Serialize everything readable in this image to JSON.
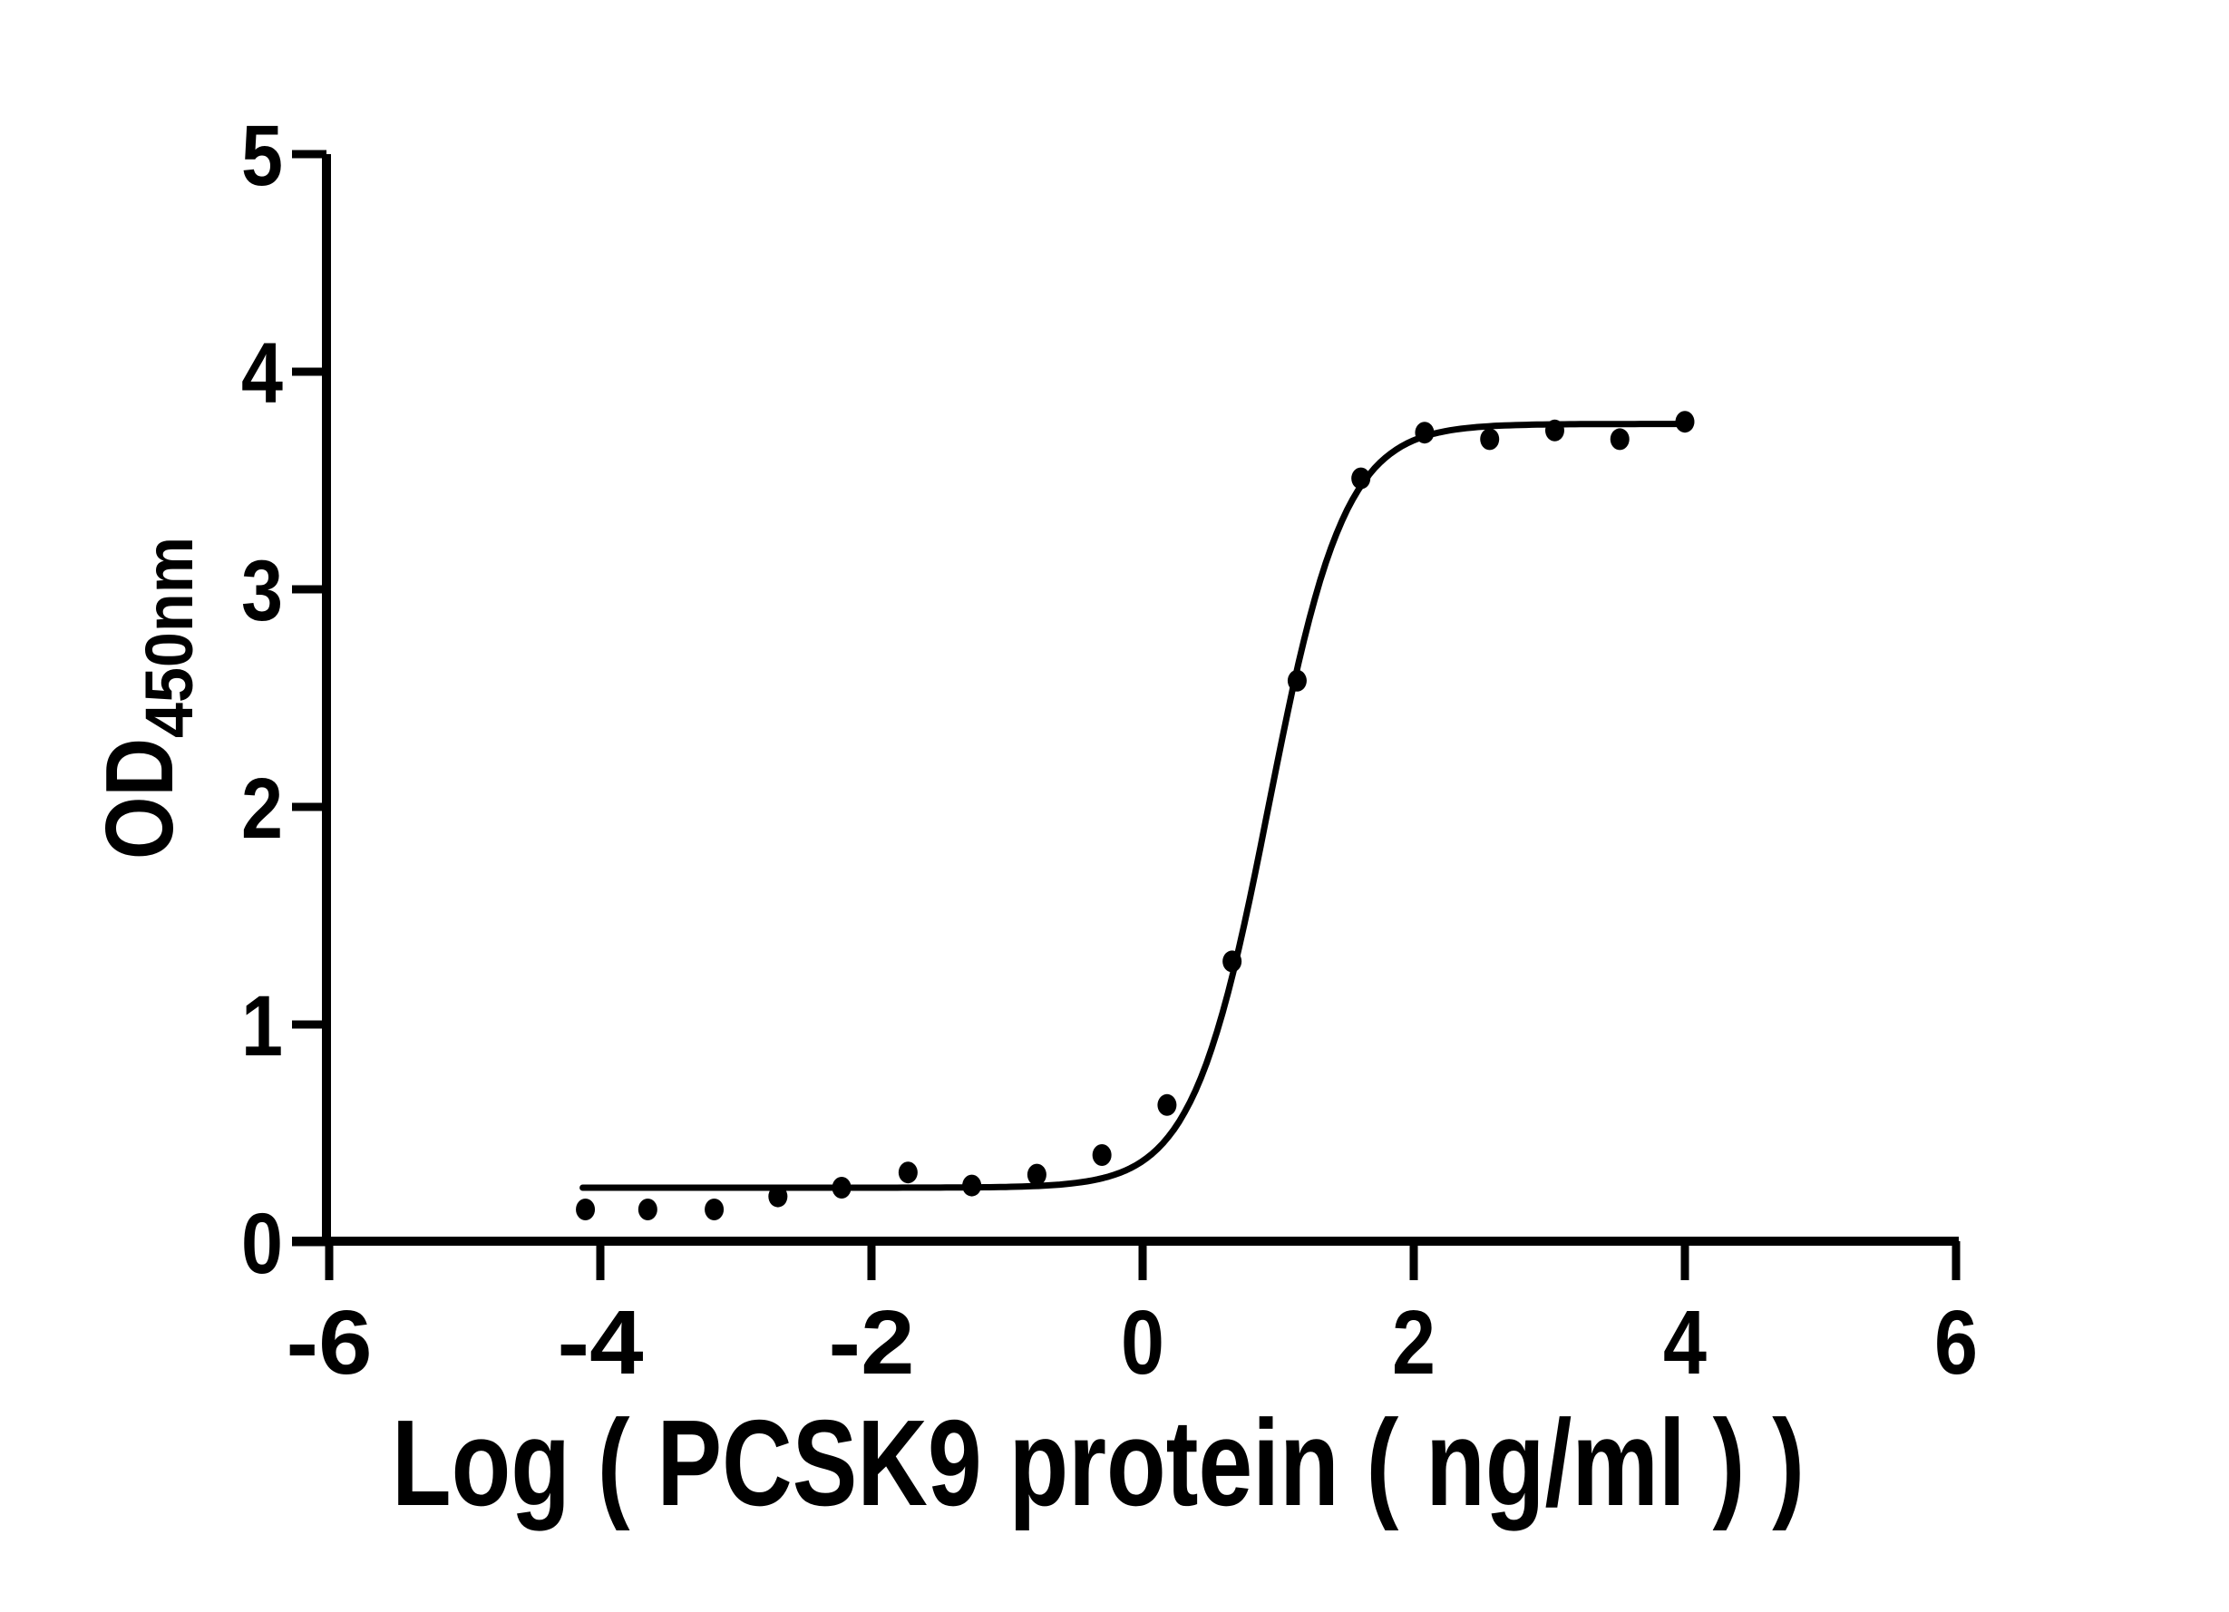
{
  "figure": {
    "background_color": "#ffffff",
    "ink_color": "#000000"
  },
  "chart_data": {
    "type": "scatter",
    "title": "",
    "xlabel": "Log ( PCSK9 protein ( ng/ml )   )",
    "ylabel": "OD",
    "ylabel_subscript": "450nm",
    "xlim": [
      -6,
      6
    ],
    "ylim": [
      0,
      5
    ],
    "x_ticks": [
      -6,
      -4,
      -2,
      0,
      2,
      4,
      6
    ],
    "y_ticks": [
      0,
      1,
      2,
      3,
      4,
      5
    ],
    "grid": false,
    "legend": "none",
    "marker": "filled-circle",
    "points": [
      {
        "x": -4.11,
        "y": 0.15
      },
      {
        "x": -3.65,
        "y": 0.15
      },
      {
        "x": -3.16,
        "y": 0.15
      },
      {
        "x": -2.69,
        "y": 0.21
      },
      {
        "x": -2.22,
        "y": 0.25
      },
      {
        "x": -1.73,
        "y": 0.32
      },
      {
        "x": -1.26,
        "y": 0.26
      },
      {
        "x": -0.78,
        "y": 0.31
      },
      {
        "x": -0.3,
        "y": 0.4
      },
      {
        "x": 0.18,
        "y": 0.63
      },
      {
        "x": 0.66,
        "y": 1.29
      },
      {
        "x": 1.14,
        "y": 2.58
      },
      {
        "x": 1.61,
        "y": 3.51
      },
      {
        "x": 2.08,
        "y": 3.72
      },
      {
        "x": 2.56,
        "y": 3.69
      },
      {
        "x": 3.04,
        "y": 3.73
      },
      {
        "x": 3.52,
        "y": 3.69
      },
      {
        "x": 4.0,
        "y": 3.77
      }
    ],
    "fit_curve": {
      "model": "4PL-sigmoid",
      "bottom": 0.25,
      "top": 3.76,
      "logEC50": 0.93,
      "hillslope": 1.55,
      "x_start": -4.13,
      "x_end": 4.0
    }
  }
}
